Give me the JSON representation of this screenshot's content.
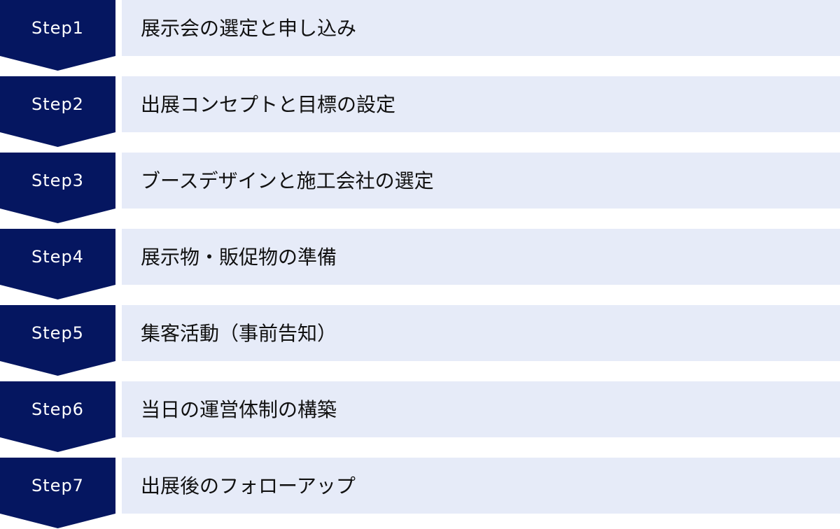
{
  "colors": {
    "badge": "#051660",
    "bar": "#e6ebf8"
  },
  "steps": [
    {
      "label": "Step1",
      "text": "展示会の選定と申し込み"
    },
    {
      "label": "Step2",
      "text": "出展コンセプトと目標の設定"
    },
    {
      "label": "Step3",
      "text": "ブースデザインと施工会社の選定"
    },
    {
      "label": "Step4",
      "text": "展示物・販促物の準備"
    },
    {
      "label": "Step5",
      "text": "集客活動（事前告知）"
    },
    {
      "label": "Step6",
      "text": "当日の運営体制の構築"
    },
    {
      "label": "Step7",
      "text": "出展後のフォローアップ"
    }
  ]
}
